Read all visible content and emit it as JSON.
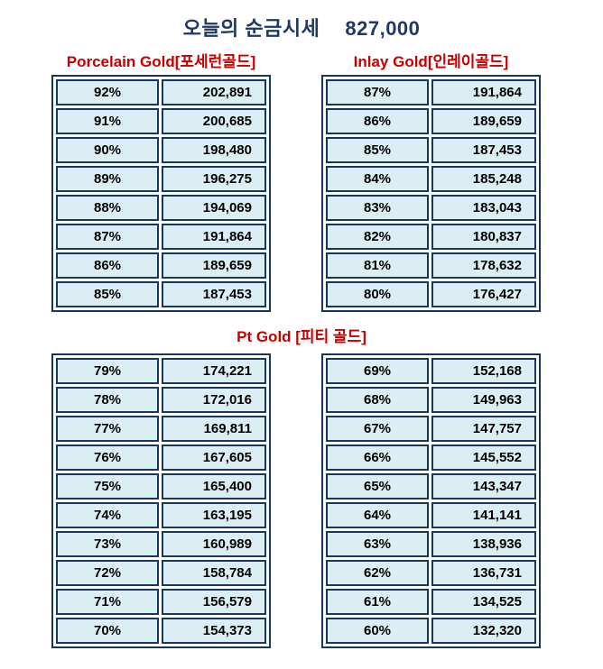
{
  "header": {
    "title": "오늘의 순금시세",
    "gold_price_today": "827,000"
  },
  "colors": {
    "title_navy": "#1f3864",
    "border_navy": "#17375d",
    "header_red": "#c40000",
    "cell_background": "#daeef3"
  },
  "sections": {
    "porcelain": {
      "title": "Porcelain Gold[포세런골드]",
      "rows": [
        {
          "percent": "92%",
          "price": "202,891"
        },
        {
          "percent": "91%",
          "price": "200,685"
        },
        {
          "percent": "90%",
          "price": "198,480"
        },
        {
          "percent": "89%",
          "price": "196,275"
        },
        {
          "percent": "88%",
          "price": "194,069"
        },
        {
          "percent": "87%",
          "price": "191,864"
        },
        {
          "percent": "86%",
          "price": "189,659"
        },
        {
          "percent": "85%",
          "price": "187,453"
        }
      ]
    },
    "inlay": {
      "title": "Inlay Gold[인레이골드]",
      "rows": [
        {
          "percent": "87%",
          "price": "191,864"
        },
        {
          "percent": "86%",
          "price": "189,659"
        },
        {
          "percent": "85%",
          "price": "187,453"
        },
        {
          "percent": "84%",
          "price": "185,248"
        },
        {
          "percent": "83%",
          "price": "183,043"
        },
        {
          "percent": "82%",
          "price": "180,837"
        },
        {
          "percent": "81%",
          "price": "178,632"
        },
        {
          "percent": "80%",
          "price": "176,427"
        }
      ]
    },
    "pt": {
      "title": "Pt Gold [피티 골드]",
      "left_rows": [
        {
          "percent": "79%",
          "price": "174,221"
        },
        {
          "percent": "78%",
          "price": "172,016"
        },
        {
          "percent": "77%",
          "price": "169,811"
        },
        {
          "percent": "76%",
          "price": "167,605"
        },
        {
          "percent": "75%",
          "price": "165,400"
        },
        {
          "percent": "74%",
          "price": "163,195"
        },
        {
          "percent": "73%",
          "price": "160,989"
        },
        {
          "percent": "72%",
          "price": "158,784"
        },
        {
          "percent": "71%",
          "price": "156,579"
        },
        {
          "percent": "70%",
          "price": "154,373"
        }
      ],
      "right_rows": [
        {
          "percent": "69%",
          "price": "152,168"
        },
        {
          "percent": "68%",
          "price": "149,963"
        },
        {
          "percent": "67%",
          "price": "147,757"
        },
        {
          "percent": "66%",
          "price": "145,552"
        },
        {
          "percent": "65%",
          "price": "143,347"
        },
        {
          "percent": "64%",
          "price": "141,141"
        },
        {
          "percent": "63%",
          "price": "138,936"
        },
        {
          "percent": "62%",
          "price": "136,731"
        },
        {
          "percent": "61%",
          "price": "134,525"
        },
        {
          "percent": "60%",
          "price": "132,320"
        }
      ]
    }
  }
}
